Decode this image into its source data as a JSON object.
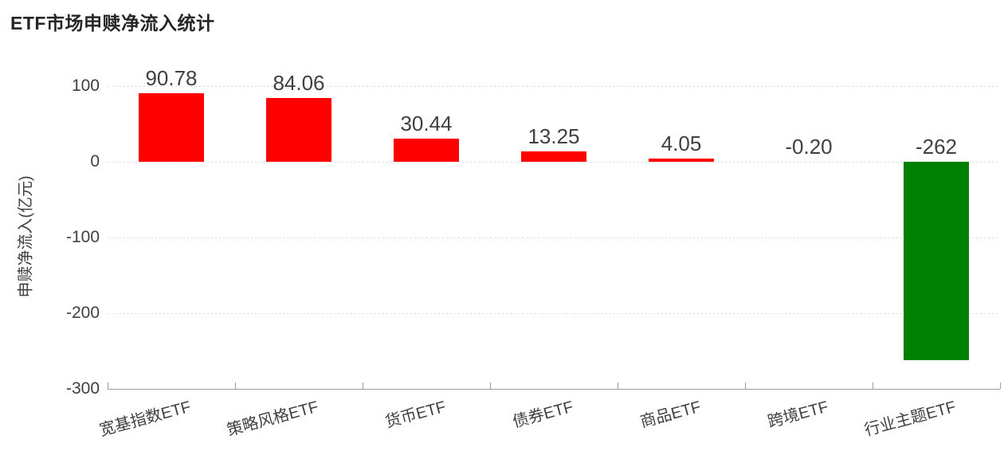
{
  "title": "ETF市场申赎净流入统计",
  "chart_data": {
    "type": "bar",
    "title": "ETF市场申赎净流入统计",
    "categories": [
      "宽基指数ETF",
      "策略风格ETF",
      "货币ETF",
      "债券ETF",
      "商品ETF",
      "跨境ETF",
      "行业主题ETF"
    ],
    "values": [
      90.78,
      84.06,
      30.44,
      13.25,
      4.05,
      -0.2,
      -262
    ],
    "value_labels": [
      "90.78",
      "84.06",
      "30.44",
      "13.25",
      "4.05",
      "-0.20",
      "-262"
    ],
    "xlabel": "",
    "ylabel": "申赎净流入(亿元)",
    "ylim": [
      -300,
      100
    ],
    "yticks": [
      100,
      0,
      -100,
      -200,
      -300
    ],
    "grid": true,
    "gridline_style": "dotted",
    "legend": false,
    "positive_color": "#fe0000",
    "negative_color": "#008000",
    "grid_color": "#d7dce6",
    "axis_color": "#9c9c9c",
    "text_color": "#404040"
  }
}
